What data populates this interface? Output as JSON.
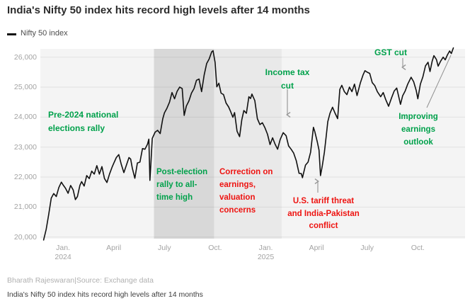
{
  "title": "India's Nifty 50 index hits record high levels after 14 months",
  "footer": {
    "credit": "Bharath Rajeswaran|Source: Exchange data",
    "caption": "India's Nifty 50 index hits record high levels after 14 months"
  },
  "colors": {
    "line": "#111111",
    "green": "#00a14b",
    "red": "#ee1310",
    "plot_bg": "#f4f4f4",
    "band_dark": "#d8d8d8",
    "band_light": "#e9e9e9",
    "gridline": "#dcdcdc",
    "axis_text": "#a3a3a3",
    "arrow": "#999999"
  },
  "chart_data": {
    "type": "line",
    "title": "India's Nifty 50 index hits record high levels after 14 months",
    "legend": [
      {
        "label": "Nifty 50 index",
        "color": "#111111"
      }
    ],
    "legend_position": "top-left",
    "grid": true,
    "xlabel": "",
    "ylabel": "",
    "y_axis": {
      "min": 20000,
      "max": 26000,
      "ticks": [
        {
          "v": 26000,
          "label": "26,000"
        },
        {
          "v": 25000,
          "label": "25,000"
        },
        {
          "v": 24000,
          "label": "24,000"
        },
        {
          "v": 23000,
          "label": "23,000"
        },
        {
          "v": 22000,
          "label": "22,000"
        },
        {
          "v": 21000,
          "label": "21,000"
        },
        {
          "v": 20000,
          "label": "20,000"
        }
      ]
    },
    "x_axis": {
      "unit": "months-since-2023-12-01",
      "ticks": [
        {
          "m": 1,
          "label": "Jan.",
          "sub": "2024"
        },
        {
          "m": 4,
          "label": "April"
        },
        {
          "m": 7,
          "label": "July"
        },
        {
          "m": 10,
          "label": "Oct."
        },
        {
          "m": 13,
          "label": "Jan.",
          "sub": "2025"
        },
        {
          "m": 16,
          "label": "April"
        },
        {
          "m": 19,
          "label": "July"
        },
        {
          "m": 22,
          "label": "Oct."
        }
      ]
    },
    "bands": [
      {
        "name": "post-election-rally-band",
        "from_m": 6.38,
        "to_m": 9.94,
        "color": "#d8d8d8"
      },
      {
        "name": "correction-band",
        "from_m": 9.94,
        "to_m": 13.94,
        "color": "#e9e9e9"
      }
    ],
    "series": [
      {
        "name": "Nifty 50 index",
        "color": "#111111",
        "points": [
          [
            -0.15,
            19900
          ],
          [
            0.0,
            20250
          ],
          [
            0.15,
            20750
          ],
          [
            0.3,
            21300
          ],
          [
            0.45,
            21450
          ],
          [
            0.6,
            21350
          ],
          [
            0.75,
            21650
          ],
          [
            0.9,
            21830
          ],
          [
            1.0,
            21741
          ],
          [
            1.15,
            21620
          ],
          [
            1.3,
            21460
          ],
          [
            1.45,
            21720
          ],
          [
            1.6,
            21570
          ],
          [
            1.73,
            21250
          ],
          [
            1.85,
            21350
          ],
          [
            2.0,
            21725
          ],
          [
            2.1,
            21850
          ],
          [
            2.25,
            21700
          ],
          [
            2.4,
            22050
          ],
          [
            2.55,
            21950
          ],
          [
            2.7,
            22200
          ],
          [
            2.85,
            22100
          ],
          [
            3.0,
            22380
          ],
          [
            3.15,
            22100
          ],
          [
            3.3,
            22350
          ],
          [
            3.45,
            21950
          ],
          [
            3.6,
            21820
          ],
          [
            3.75,
            22100
          ],
          [
            3.9,
            22330
          ],
          [
            4.0,
            22460
          ],
          [
            4.15,
            22650
          ],
          [
            4.3,
            22750
          ],
          [
            4.45,
            22420
          ],
          [
            4.6,
            22150
          ],
          [
            4.75,
            22400
          ],
          [
            4.9,
            22650
          ],
          [
            5.0,
            22600
          ],
          [
            5.1,
            22300
          ],
          [
            5.25,
            21960
          ],
          [
            5.4,
            22470
          ],
          [
            5.55,
            22500
          ],
          [
            5.7,
            22950
          ],
          [
            5.85,
            22930
          ],
          [
            6.0,
            23100
          ],
          [
            6.08,
            23264
          ],
          [
            6.14,
            21890
          ],
          [
            6.2,
            22460
          ],
          [
            6.28,
            23290
          ],
          [
            6.45,
            23500
          ],
          [
            6.6,
            23560
          ],
          [
            6.75,
            23450
          ],
          [
            6.9,
            23940
          ],
          [
            7.0,
            24140
          ],
          [
            7.15,
            24300
          ],
          [
            7.3,
            24500
          ],
          [
            7.45,
            24820
          ],
          [
            7.6,
            24610
          ],
          [
            7.75,
            24860
          ],
          [
            7.9,
            25000
          ],
          [
            8.05,
            24950
          ],
          [
            8.17,
            24055
          ],
          [
            8.3,
            24370
          ],
          [
            8.45,
            24540
          ],
          [
            8.6,
            24800
          ],
          [
            8.75,
            24950
          ],
          [
            8.9,
            25230
          ],
          [
            9.05,
            25270
          ],
          [
            9.2,
            24850
          ],
          [
            9.35,
            25400
          ],
          [
            9.5,
            25790
          ],
          [
            9.65,
            25940
          ],
          [
            9.8,
            26180
          ],
          [
            9.88,
            26216
          ],
          [
            10.0,
            25820
          ],
          [
            10.1,
            25010
          ],
          [
            10.22,
            25130
          ],
          [
            10.35,
            24800
          ],
          [
            10.5,
            24750
          ],
          [
            10.65,
            24470
          ],
          [
            10.8,
            24340
          ],
          [
            10.92,
            24180
          ],
          [
            11.05,
            23995
          ],
          [
            11.15,
            24150
          ],
          [
            11.3,
            23530
          ],
          [
            11.45,
            23350
          ],
          [
            11.58,
            23910
          ],
          [
            11.7,
            24220
          ],
          [
            11.85,
            24130
          ],
          [
            12.0,
            24680
          ],
          [
            12.1,
            24620
          ],
          [
            12.18,
            24770
          ],
          [
            12.35,
            24550
          ],
          [
            12.5,
            23950
          ],
          [
            12.65,
            23750
          ],
          [
            12.8,
            23813
          ],
          [
            12.95,
            23645
          ],
          [
            13.1,
            23430
          ],
          [
            13.25,
            23086
          ],
          [
            13.4,
            23310
          ],
          [
            13.55,
            23100
          ],
          [
            13.7,
            22930
          ],
          [
            13.85,
            23250
          ],
          [
            14.03,
            23482
          ],
          [
            14.2,
            23380
          ],
          [
            14.35,
            23040
          ],
          [
            14.5,
            22930
          ],
          [
            14.65,
            22800
          ],
          [
            14.8,
            22550
          ],
          [
            14.97,
            22125
          ],
          [
            15.1,
            22120
          ],
          [
            15.17,
            21980
          ],
          [
            15.35,
            22400
          ],
          [
            15.5,
            22500
          ],
          [
            15.65,
            22830
          ],
          [
            15.82,
            23660
          ],
          [
            15.9,
            23520
          ],
          [
            16.05,
            23170
          ],
          [
            16.15,
            22900
          ],
          [
            16.24,
            22050
          ],
          [
            16.35,
            22400
          ],
          [
            16.47,
            22830
          ],
          [
            16.57,
            23330
          ],
          [
            16.67,
            23850
          ],
          [
            16.8,
            24130
          ],
          [
            16.95,
            24330
          ],
          [
            17.1,
            24130
          ],
          [
            17.25,
            23950
          ],
          [
            17.38,
            24925
          ],
          [
            17.5,
            25060
          ],
          [
            17.65,
            24850
          ],
          [
            17.8,
            24750
          ],
          [
            17.95,
            25000
          ],
          [
            18.1,
            24850
          ],
          [
            18.25,
            25100
          ],
          [
            18.4,
            24720
          ],
          [
            18.6,
            25150
          ],
          [
            18.75,
            25400
          ],
          [
            18.87,
            25549
          ],
          [
            19.0,
            25500
          ],
          [
            19.15,
            25460
          ],
          [
            19.3,
            25150
          ],
          [
            19.45,
            25050
          ],
          [
            19.6,
            24850
          ],
          [
            19.8,
            24680
          ],
          [
            19.95,
            24820
          ],
          [
            20.1,
            24580
          ],
          [
            20.27,
            24363
          ],
          [
            20.45,
            24650
          ],
          [
            20.6,
            24870
          ],
          [
            20.75,
            24970
          ],
          [
            20.97,
            24427
          ],
          [
            21.1,
            24715
          ],
          [
            21.25,
            24870
          ],
          [
            21.4,
            25100
          ],
          [
            21.6,
            25330
          ],
          [
            21.75,
            25180
          ],
          [
            21.9,
            24890
          ],
          [
            22.0,
            24611
          ],
          [
            22.15,
            25100
          ],
          [
            22.3,
            25350
          ],
          [
            22.45,
            25710
          ],
          [
            22.6,
            25830
          ],
          [
            22.72,
            25520
          ],
          [
            22.85,
            25870
          ],
          [
            22.95,
            26050
          ],
          [
            23.1,
            25920
          ],
          [
            23.2,
            25700
          ],
          [
            23.35,
            25870
          ],
          [
            23.5,
            26000
          ],
          [
            23.62,
            25910
          ],
          [
            23.75,
            26075
          ],
          [
            23.88,
            26205
          ],
          [
            23.98,
            26120
          ],
          [
            24.1,
            26310
          ]
        ]
      }
    ],
    "annotations": [
      {
        "id": 0,
        "text": "Pre-2024 national\nelections rally",
        "color": "#00a14b"
      },
      {
        "id": 1,
        "text": "Post-election\nrally to all-\ntime high",
        "color": "#00a14b"
      },
      {
        "id": 2,
        "text": "Correction on\nearnings,\nvaluation\nconcerns",
        "color": "#ee1310"
      },
      {
        "id": 3,
        "text": "Income tax\ncut",
        "color": "#00a14b"
      },
      {
        "id": 4,
        "text": "GST cut",
        "color": "#00a14b"
      },
      {
        "id": 5,
        "text": "Improving\nearnings\noutlook",
        "color": "#00a14b"
      },
      {
        "id": 6,
        "text": "U.S. tariff threat\nand India-Pakistan\nconflict",
        "color": "#ee1310"
      }
    ]
  }
}
